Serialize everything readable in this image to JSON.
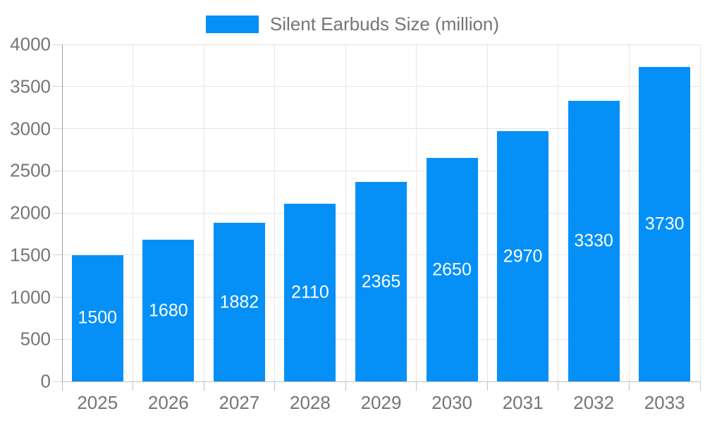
{
  "legend": {
    "label": "Silent Earbuds Size (million)"
  },
  "chart_data": {
    "type": "bar",
    "title": "",
    "legend_entries": [
      "Silent Earbuds Size (million)"
    ],
    "legend_position": "top-center",
    "categories": [
      "2025",
      "2026",
      "2027",
      "2028",
      "2029",
      "2030",
      "2031",
      "2032",
      "2033"
    ],
    "series": [
      {
        "name": "Silent Earbuds Size (million)",
        "values": [
          1500,
          1680,
          1882,
          2110,
          2365,
          2650,
          2970,
          3330,
          3730
        ]
      }
    ],
    "data_labels": [
      "1500",
      "1680",
      "1882",
      "2110",
      "2365",
      "2650",
      "2970",
      "3330",
      "3730"
    ],
    "xlabel": "",
    "ylabel": "",
    "ylim": [
      0,
      4000
    ],
    "ytick_step": 500,
    "yticks": [
      0,
      500,
      1000,
      1500,
      2000,
      2500,
      3000,
      3500,
      4000
    ],
    "grid": true,
    "colors": {
      "bar": "#0590f8",
      "axis_text": "#757575",
      "value_label_text": "#ffffff",
      "grid_line": "#e6e6e6",
      "y_axis_line": "#9e9e9e",
      "x_axis_line": "#c2c2c2",
      "background": "#ffffff"
    }
  }
}
